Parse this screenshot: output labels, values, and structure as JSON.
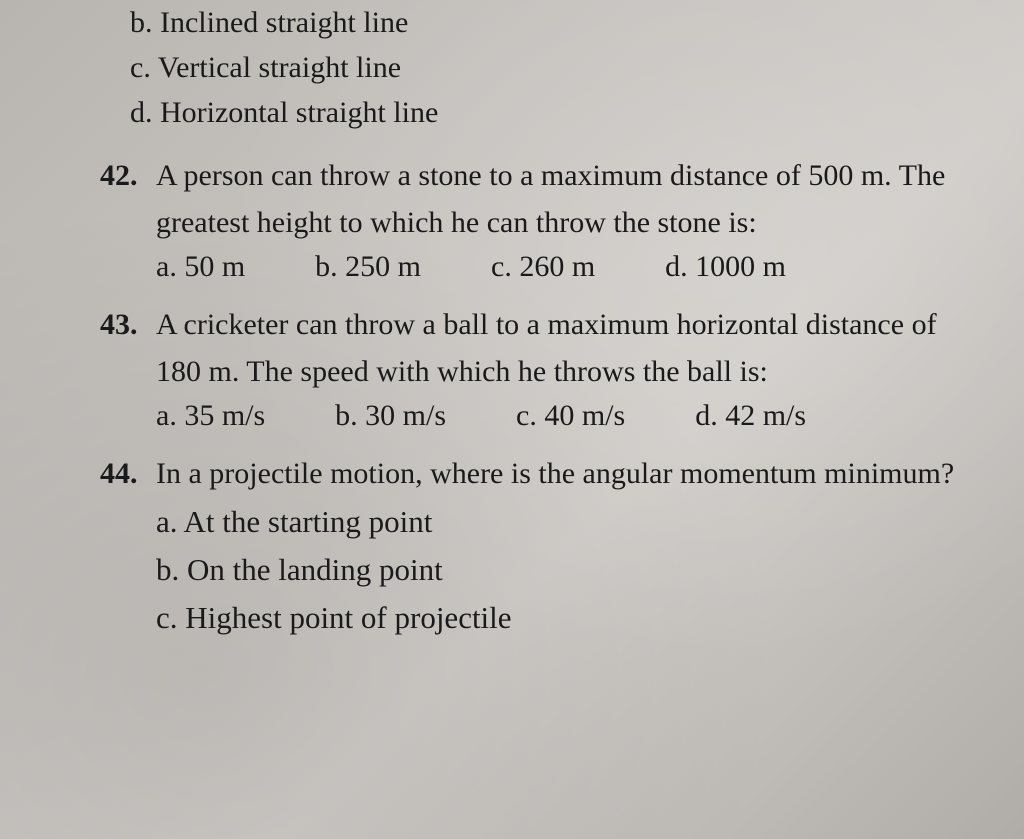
{
  "page": {
    "background_gradient": [
      "#b8b4b0",
      "#c5c1bd",
      "#d0ccc8",
      "#b0aca8"
    ],
    "text_color": "#1a1a1a",
    "font_family": "Georgia, Times New Roman, serif",
    "base_fontsize": 30
  },
  "partial_prev": {
    "opt_b": "b. Inclined straight line",
    "opt_c": "c. Vertical straight line",
    "opt_d": "d. Horizontal straight line"
  },
  "q42": {
    "number": "42.",
    "text": "A person can throw a stone to a maximum distance of 500 m. The greatest height to which he can throw the stone is:",
    "options": {
      "a": "a. 50 m",
      "b": "b. 250 m",
      "c": "c. 260 m",
      "d": "d. 1000 m"
    }
  },
  "q43": {
    "number": "43.",
    "text": "A cricketer can throw a ball to a maximum horizontal distance of 180 m. The speed with which he throws the ball is:",
    "options": {
      "a": "a. 35 m/s",
      "b": "b. 30 m/s",
      "c": "c. 40 m/s",
      "d": "d. 42 m/s"
    }
  },
  "q44": {
    "number": "44.",
    "text": "In a projectile motion, where is the angular momentum minimum?",
    "options": {
      "a": "a. At the starting point",
      "b": "b. On the landing point",
      "c": "c. Highest point of projectile"
    }
  }
}
